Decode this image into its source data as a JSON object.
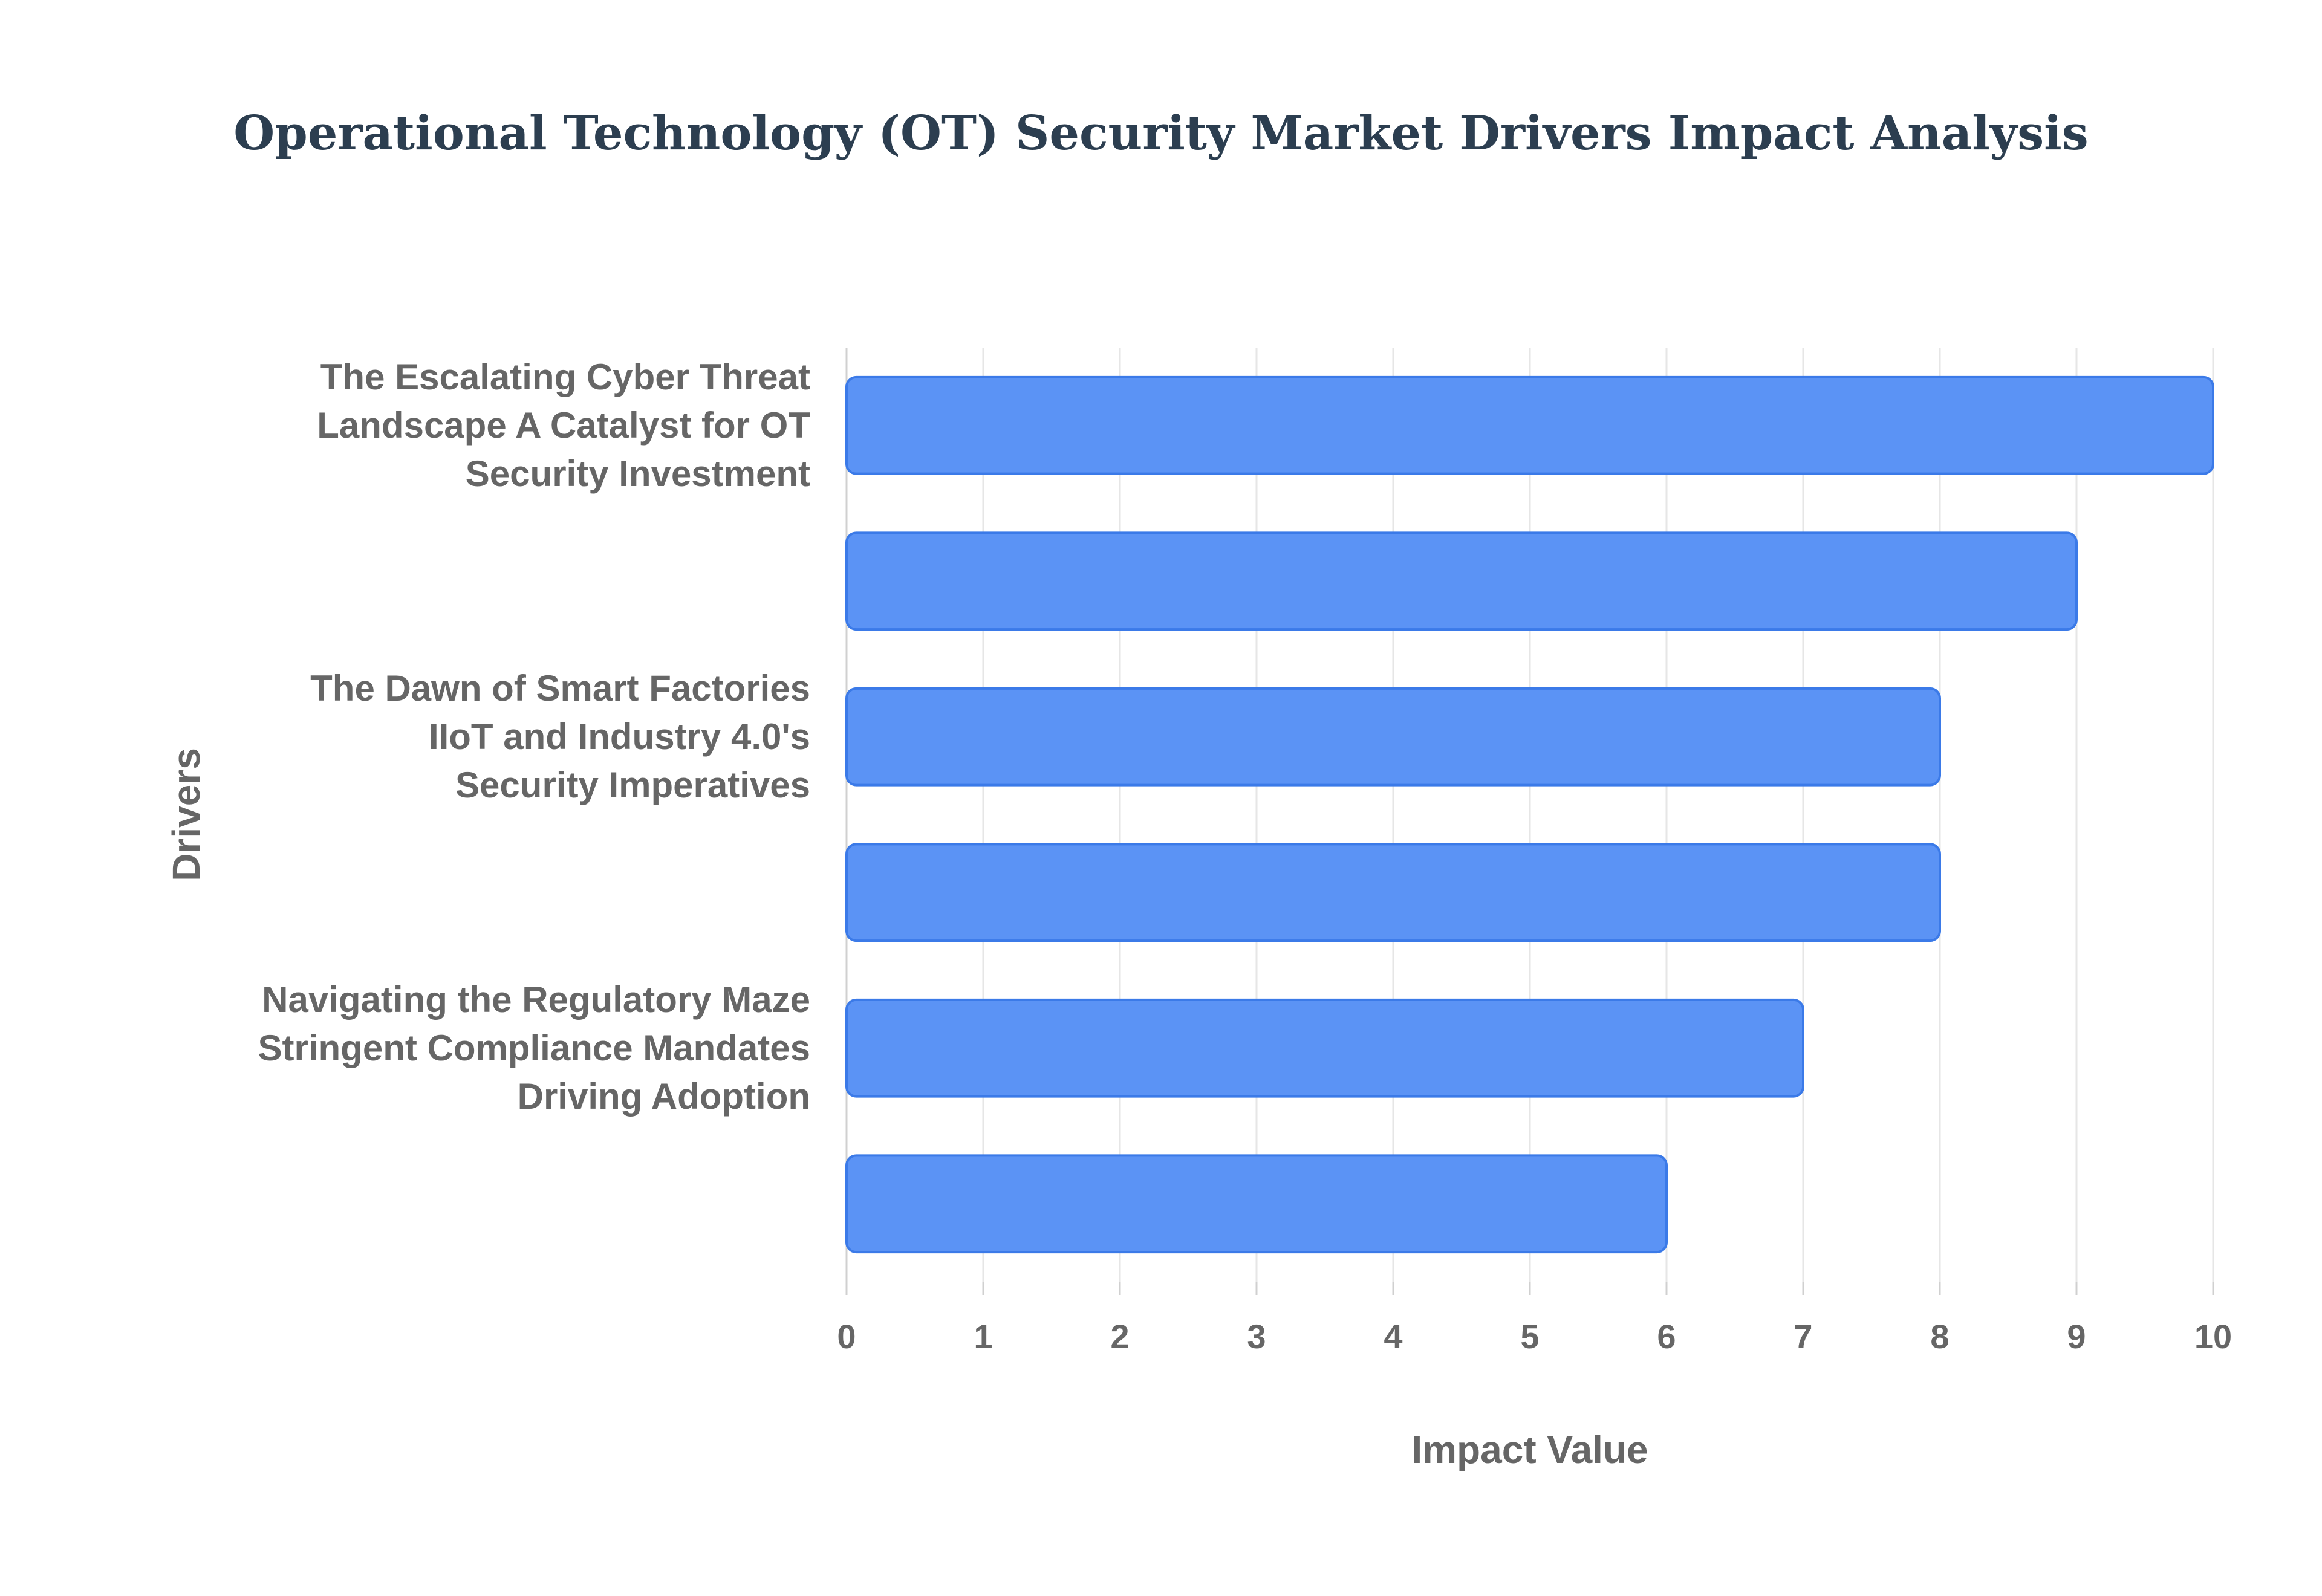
{
  "chart_data": {
    "type": "bar",
    "orientation": "horizontal",
    "title": "Operational Technology (OT) Security Market Drivers Impact Analysis",
    "xlabel": "Impact Value",
    "ylabel": "Drivers",
    "xlim": [
      0,
      10
    ],
    "xticks": [
      "0",
      "1",
      "2",
      "3",
      "4",
      "5",
      "6",
      "7",
      "8",
      "9",
      "10"
    ],
    "grid": true,
    "legend": "none",
    "bar_color": "#5b93f5",
    "bar_border_color": "#3b7ae8",
    "categories": [
      [
        "The Escalating Cyber Threat",
        "Landscape A Catalyst for OT",
        "Security Investment"
      ],
      [],
      [
        "The Dawn of Smart Factories",
        "IIoT and Industry 4.0's",
        "Security Imperatives"
      ],
      [],
      [
        "Navigating the Regulatory Maze",
        "Stringent Compliance Mandates",
        "Driving Adoption"
      ],
      []
    ],
    "values": [
      10,
      9,
      8,
      8,
      7,
      6
    ]
  }
}
